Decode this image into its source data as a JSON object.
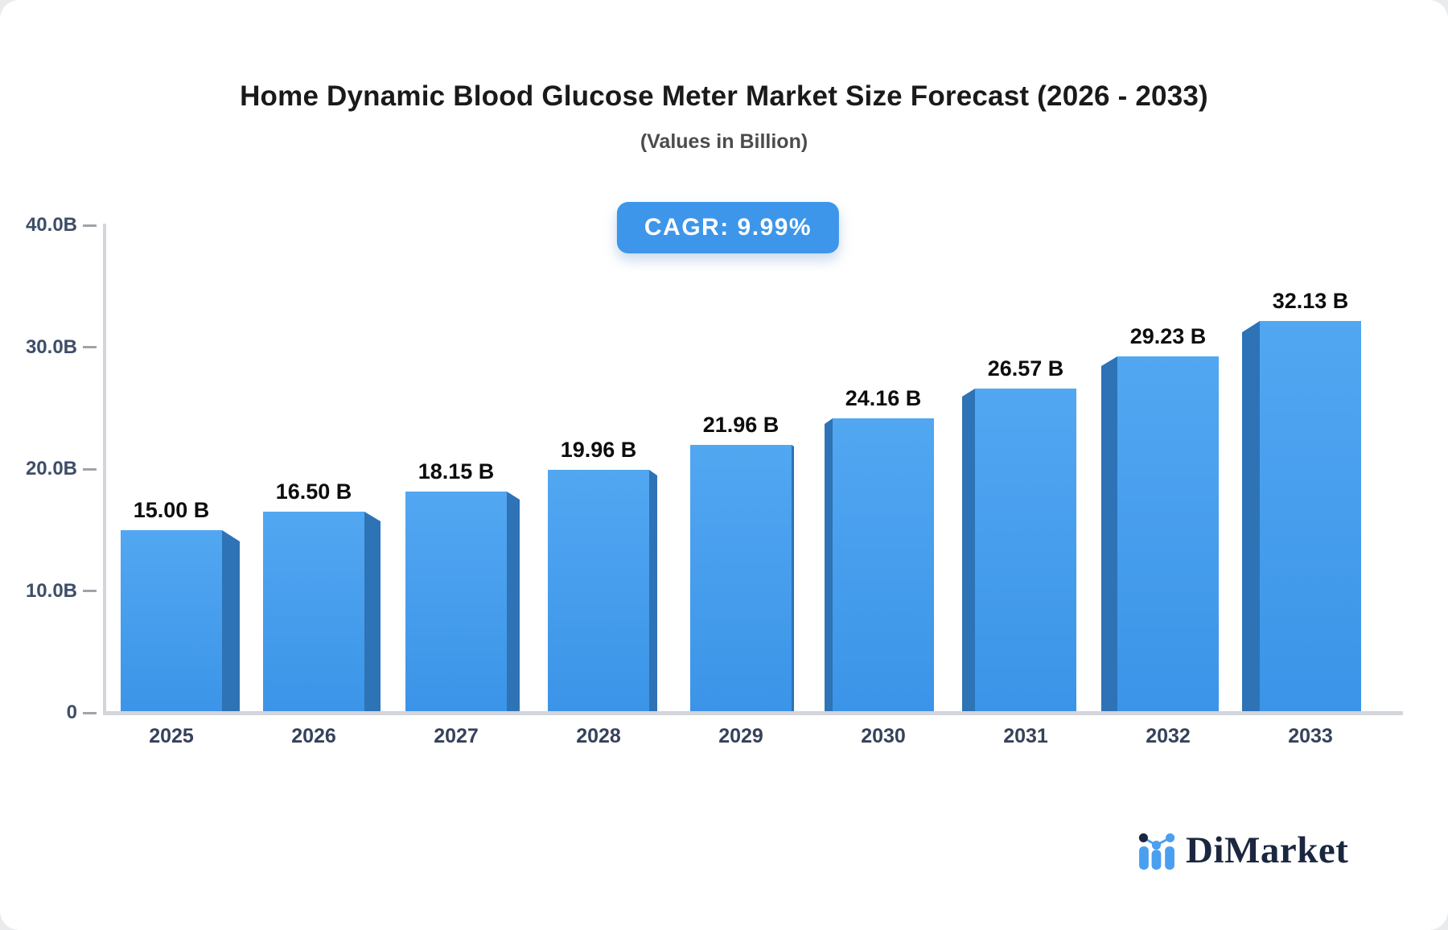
{
  "page": {
    "title": "Home Dynamic Blood Glucose Meter Market Size Forecast (2026 - 2033)",
    "subtitle": "(Values in Billion)",
    "cagr_badge": "CAGR: 9.99%"
  },
  "brand": {
    "name": "DiMarket",
    "icon": "dimarket-mini-bar-chart-icon"
  },
  "colors": {
    "page_bg": "#E9EBED",
    "card_bg": "#FFFFFF",
    "title": "#1A1A1A",
    "subtitle": "#4C4C4C",
    "badge_bg": "#3D96E9",
    "badge_text": "#FFFFFF",
    "axis_line": "#D2D5D9",
    "tick_mark": "#9FA4AA",
    "y_label": "#3E4E68",
    "x_label": "#36425A",
    "value_label": "#0D0D0D",
    "bar_face_top": "#52A7F1",
    "bar_face_bottom": "#3B94E8",
    "bar_side": "#2D73B6",
    "logo_navy": "#1B2740",
    "logo_blue": "#4A9FF0"
  },
  "chart_data": {
    "type": "bar",
    "title": "Home Dynamic Blood Glucose Meter Market Size Forecast (2026 - 2033)",
    "subtitle": "(Values in Billion)",
    "annotation": "CAGR: 9.99%",
    "categories": [
      "2025",
      "2026",
      "2027",
      "2028",
      "2029",
      "2030",
      "2031",
      "2032",
      "2033"
    ],
    "values": [
      15.0,
      16.5,
      18.15,
      19.96,
      21.96,
      24.16,
      26.57,
      29.23,
      32.13
    ],
    "value_labels": [
      "15.00 B",
      "16.50 B",
      "18.15 B",
      "19.96 B",
      "21.96 B",
      "24.16 B",
      "26.57 B",
      "29.23 B",
      "32.13 B"
    ],
    "unit": "Billion",
    "ylim": [
      0,
      40
    ],
    "y_ticks": [
      {
        "label": "40.0B",
        "value": 40
      },
      {
        "label": "30.0B",
        "value": 30
      },
      {
        "label": "20.0B",
        "value": 20
      },
      {
        "label": "10.0B",
        "value": 10
      },
      {
        "label": "0",
        "value": 0
      }
    ],
    "grid": false,
    "legend": false,
    "bar_style": "3d-perspective-center-vanishing"
  }
}
